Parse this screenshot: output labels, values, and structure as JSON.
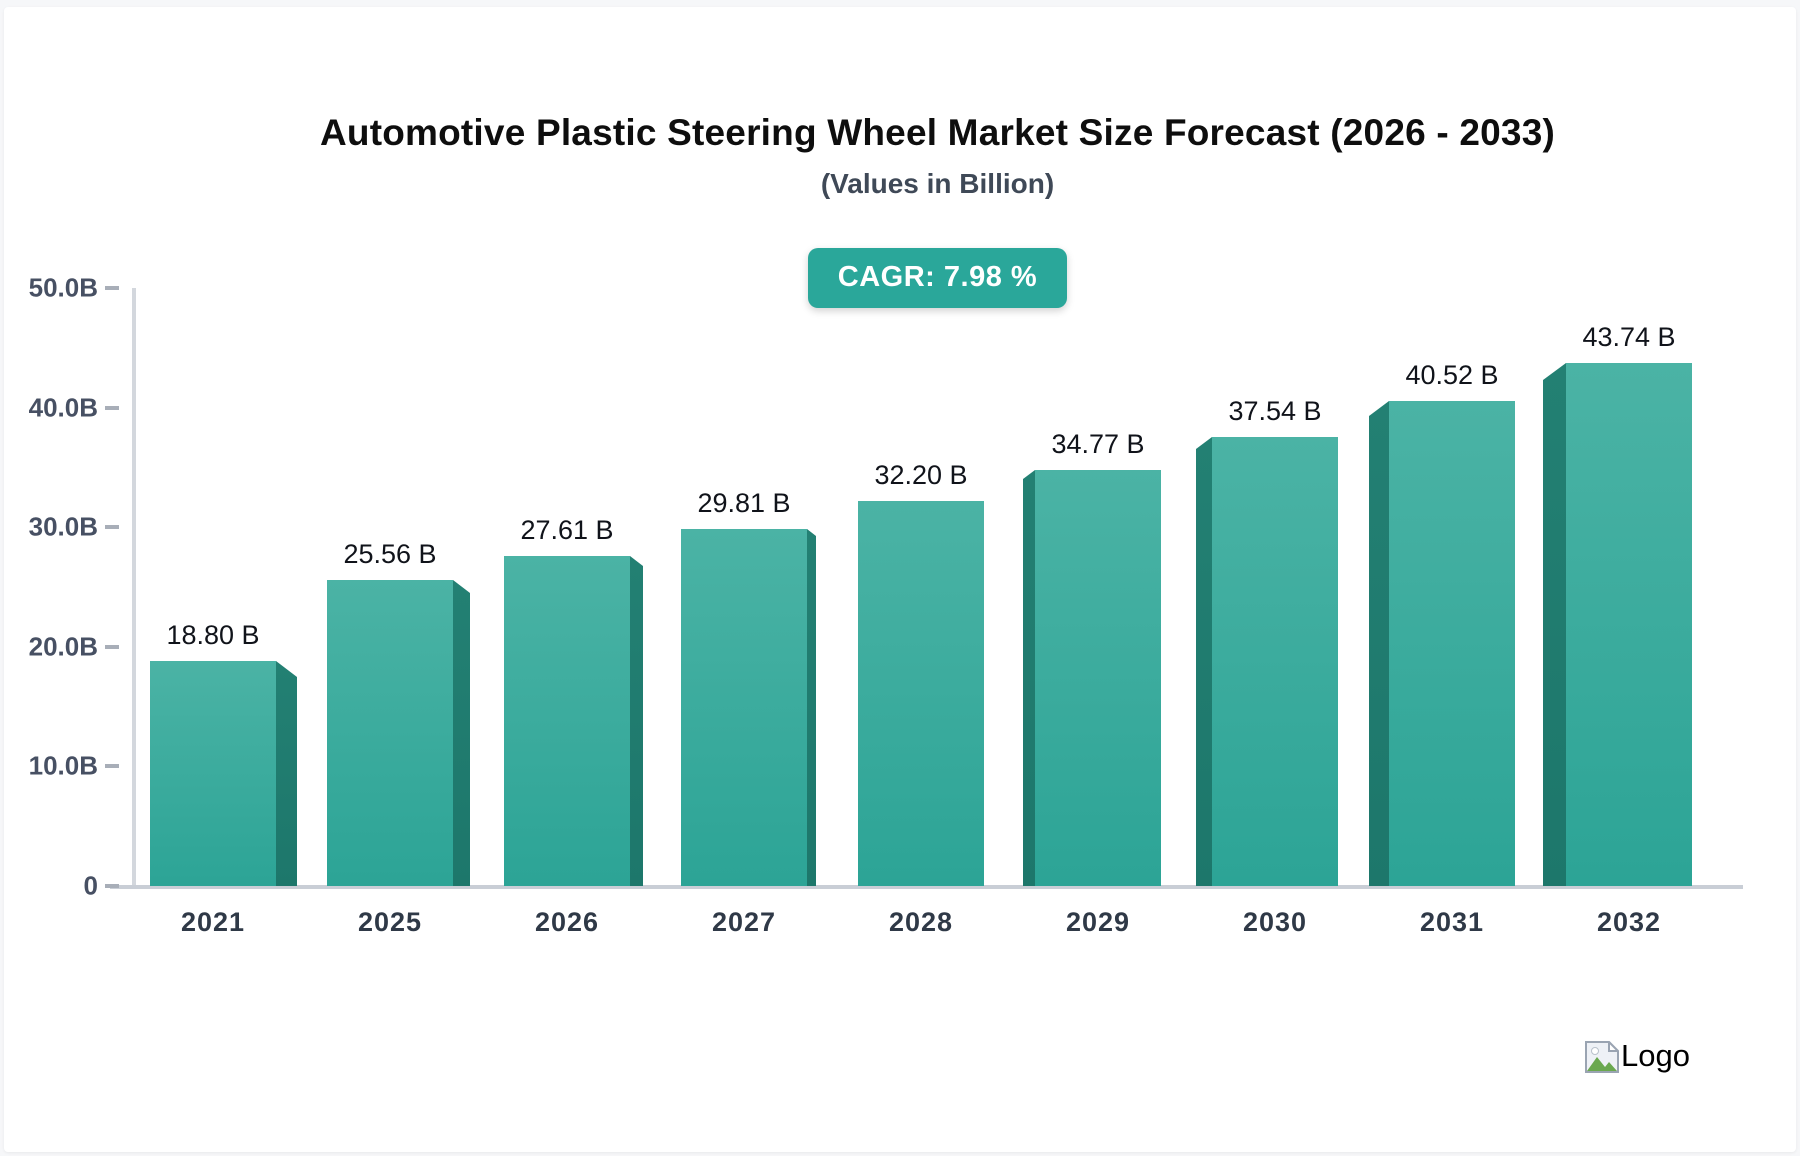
{
  "header": {
    "title": "Automotive Plastic Steering Wheel Market Size Forecast (2026 - 2033)",
    "subtitle": "(Values in Billion)",
    "cagr_badge": "CAGR: 7.98 %"
  },
  "footer": {
    "logo_alt": "Logo"
  },
  "colors": {
    "bar_face_top": "#4bb3a5",
    "bar_face_bottom": "#2ca496",
    "bar_side": "#1e7a6e",
    "badge_bg": "#2aa79a",
    "axis_line": "#d3d7dd",
    "baseline": "#c9ced6",
    "tick_dash": "#a8aeb8",
    "y_label": "#475063",
    "x_label": "#2f3947",
    "value_label": "#10131a",
    "title": "#0e0e0e",
    "subtitle": "#3f4957",
    "card_bg": "#ffffff",
    "page_bg": "#f6f7f9"
  },
  "chart_data": {
    "type": "bar",
    "style": "3d-column",
    "title": "Automotive Plastic Steering Wheel Market Size Forecast (2026 - 2033)",
    "subtitle": "(Values in Billion)",
    "annotation": "CAGR: 7.98 %",
    "categories": [
      "2021",
      "2025",
      "2026",
      "2027",
      "2028",
      "2029",
      "2030",
      "2031",
      "2032"
    ],
    "values": [
      18.8,
      25.56,
      27.61,
      29.81,
      32.2,
      34.77,
      37.54,
      40.52,
      43.74
    ],
    "value_labels": [
      "18.80 B",
      "25.56 B",
      "27.61 B",
      "29.81 B",
      "32.20 B",
      "34.77 B",
      "37.54 B",
      "40.52 B",
      "43.74 B"
    ],
    "xlabel": "",
    "ylabel": "",
    "ylim": [
      0,
      50
    ],
    "y_ticks": [
      {
        "label": "50.0B",
        "value": 50
      },
      {
        "label": "40.0B",
        "value": 40
      },
      {
        "label": "30.0B",
        "value": 30
      },
      {
        "label": "20.0B",
        "value": 20
      },
      {
        "label": "10.0B",
        "value": 10
      },
      {
        "label": "0",
        "value": 0
      }
    ],
    "grid": "off",
    "legend": "none",
    "unit": "Billion"
  }
}
